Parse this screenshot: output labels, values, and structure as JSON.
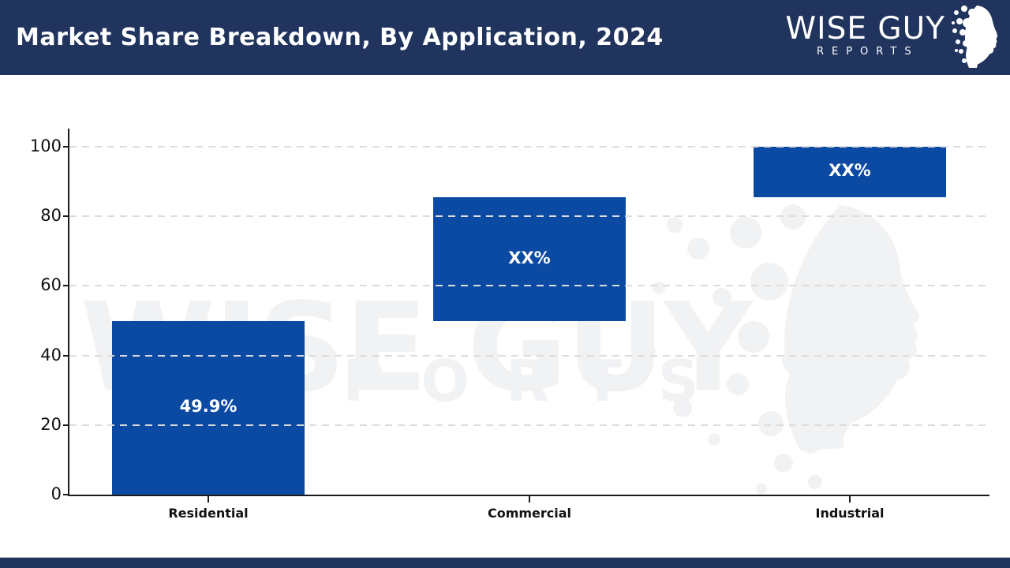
{
  "header": {
    "title": "Market Share Breakdown, By Application, 2024",
    "logo_line1": "WISE GUY",
    "logo_line2": "REPORTS"
  },
  "watermark": {
    "line1": "WISE GUY",
    "line2": "REPORTS"
  },
  "colors": {
    "header_bg": "#20345e",
    "footer_bg": "#20345e",
    "bar": "#0b4aa2",
    "gridline": "#dcdcdc",
    "watermark": "#f1f2f4",
    "axis": "#1a1a1a"
  },
  "chart_data": {
    "type": "bar",
    "subtype": "waterfall-breakdown",
    "title": "Market Share Breakdown, By Application, 2024",
    "categories": [
      "Residential",
      "Commercial",
      "Industrial"
    ],
    "segments": [
      {
        "category": "Residential",
        "start": 0,
        "end": 49.9,
        "label": "49.9%"
      },
      {
        "category": "Commercial",
        "start": 49.9,
        "end": 85.4,
        "label": "XX%"
      },
      {
        "category": "Industrial",
        "start": 85.4,
        "end": 100,
        "label": "XX%"
      }
    ],
    "yticks": [
      0,
      20,
      40,
      60,
      80,
      100
    ],
    "ylim": [
      0,
      105
    ],
    "xlabel": "",
    "ylabel": "",
    "grid": "horizontal-dashed",
    "legend": "none",
    "bar_value_labels_inside": true
  }
}
